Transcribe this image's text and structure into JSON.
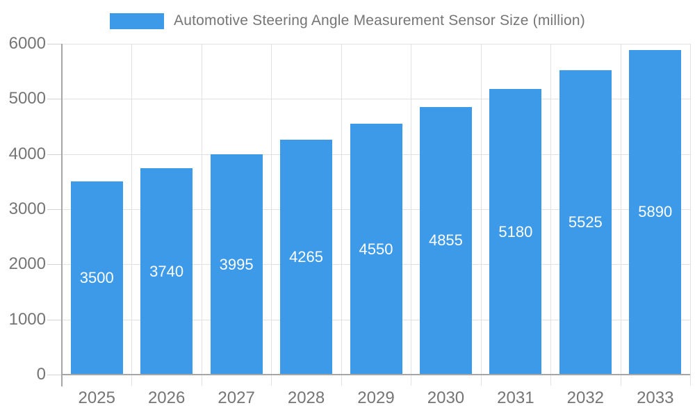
{
  "chart_data": {
    "type": "bar",
    "title": "Automotive Steering Angle Measurement Sensor Size (million)",
    "categories": [
      "2025",
      "2026",
      "2027",
      "2028",
      "2029",
      "2030",
      "2031",
      "2032",
      "2033"
    ],
    "values": [
      3500,
      3740,
      3995,
      4265,
      4550,
      4855,
      5180,
      5525,
      5890
    ],
    "xlabel": "",
    "ylabel": "",
    "ylim": [
      0,
      6000
    ],
    "yticks": [
      0,
      1000,
      2000,
      3000,
      4000,
      5000,
      6000
    ],
    "grid": "both",
    "legend_position": "top",
    "value_labels": "inside-center"
  },
  "colors": {
    "bar": "#3d9ae9",
    "muted_text": "#757575",
    "gridline": "#e1e1e1",
    "tick": "#d2d2d2",
    "axis": "#a6a6a6",
    "bar_label": "#ffffff",
    "background": "#ffffff"
  }
}
